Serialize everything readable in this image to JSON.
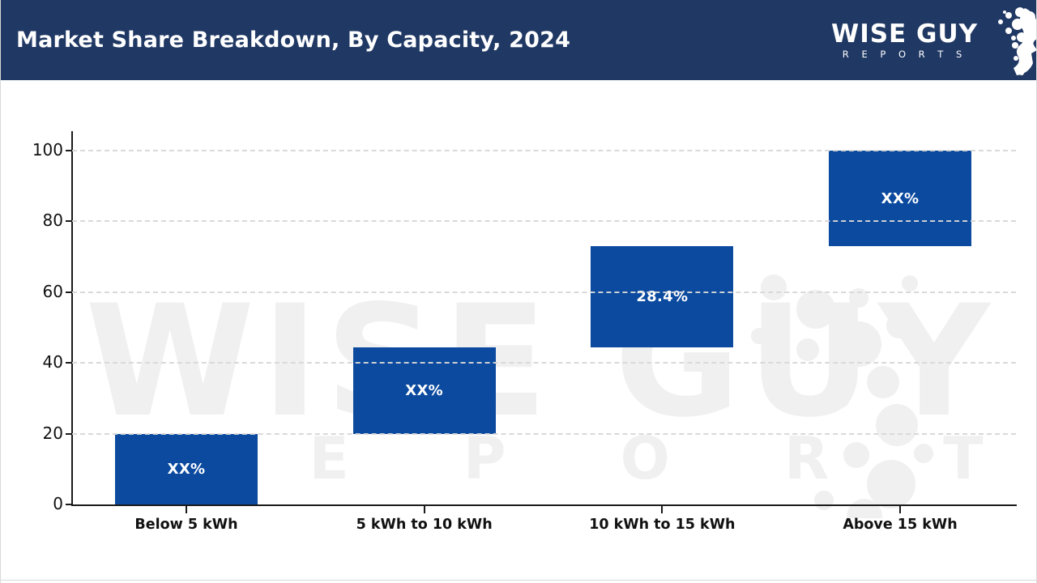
{
  "header": {
    "title": "Market Share Breakdown, By Capacity, 2024",
    "logo": {
      "primary": "WISE GUY",
      "secondary": "R E P O R T S"
    }
  },
  "watermark": {
    "primary": "WISE GUY",
    "secondary": "R E P O R T S"
  },
  "colors": {
    "header_bg": "#203864",
    "bar": "#0b4a9f",
    "grid": "#d8d8d8",
    "axis": "#1a1a1a",
    "bar_label": "#ffffff",
    "watermark": "#f0f0f0"
  },
  "chart_data": {
    "type": "bar",
    "subtype": "waterfall",
    "title": "Market Share Breakdown, By Capacity, 2024",
    "categories": [
      "Below 5 kWh",
      "5 kWh to 10 kWh",
      "10 kWh to 15 kWh",
      "Above 15 kWh"
    ],
    "series": [
      {
        "name": "Market Share",
        "segments": [
          {
            "category": "Below 5 kWh",
            "start": 0,
            "end": 20,
            "label": "XX%"
          },
          {
            "category": "5 kWh to 10 kWh",
            "start": 20,
            "end": 44.5,
            "label": "XX%"
          },
          {
            "category": "10 kWh to 15 kWh",
            "start": 44.5,
            "end": 72.9,
            "label": "28.4%"
          },
          {
            "category": "Above 15 kWh",
            "start": 72.9,
            "end": 100,
            "label": "XX%"
          }
        ]
      }
    ],
    "xlabel": "",
    "ylabel": "",
    "ylim": [
      0,
      100
    ],
    "yticks": [
      0,
      20,
      40,
      60,
      80,
      100
    ],
    "grid": true,
    "gridstyle": "dashed",
    "legend": false
  }
}
